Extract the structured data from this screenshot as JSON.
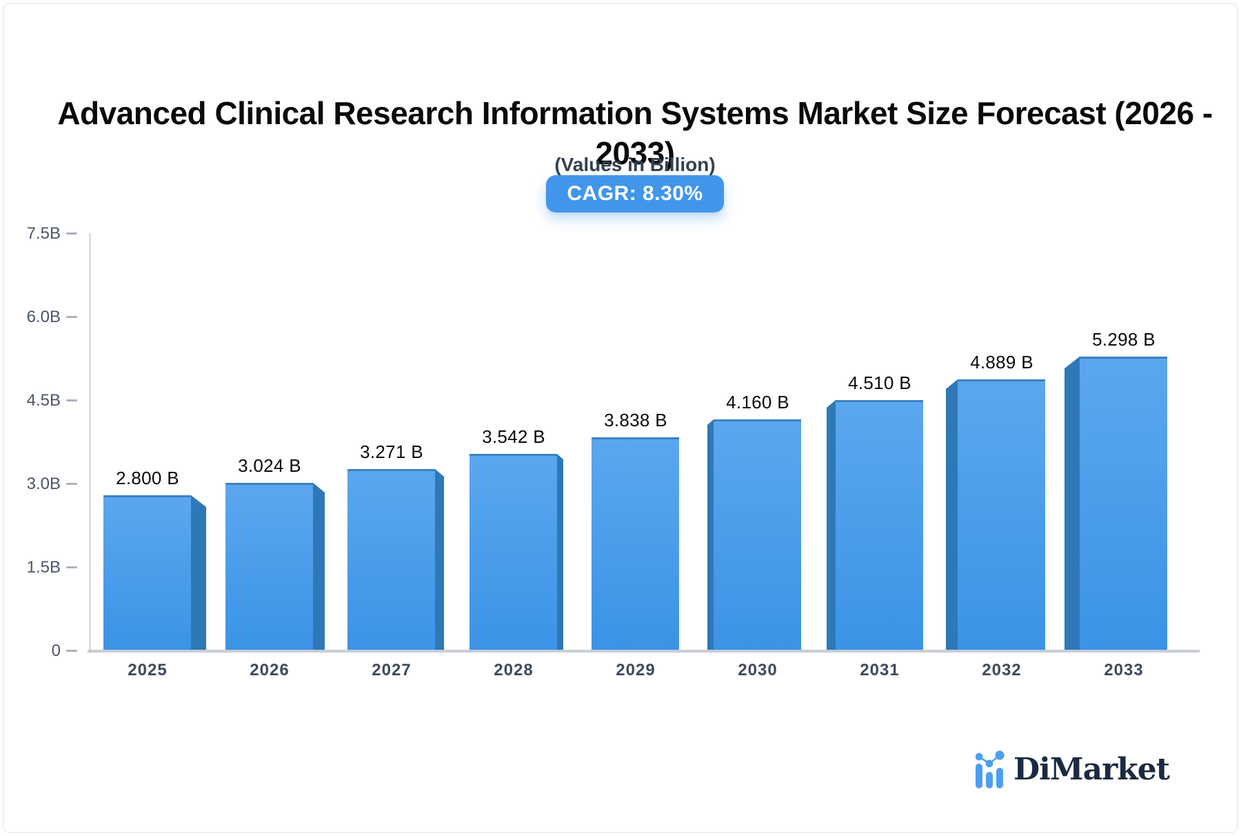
{
  "header": {
    "title_line1": "Advanced Clinical Research Information Systems Market Size Forecast (2026 -",
    "title_line2": "2033)",
    "subtitle": "(Values in Billion)",
    "cagr_badge": "CAGR: 8.30%"
  },
  "chart_data": {
    "type": "bar",
    "title": "Advanced Clinical Research Information Systems Market Size Forecast (2026 - 2033)",
    "subtitle": "(Values in Billion)",
    "annotation": "CAGR: 8.30%",
    "categories": [
      "2025",
      "2026",
      "2027",
      "2028",
      "2029",
      "2030",
      "2031",
      "2032",
      "2033"
    ],
    "values": [
      2.8,
      3.024,
      3.271,
      3.542,
      3.838,
      4.16,
      4.51,
      4.889,
      5.298
    ],
    "value_labels": [
      "2.800 B",
      "3.024 B",
      "3.271 B",
      "3.542 B",
      "3.838 B",
      "4.160 B",
      "4.510 B",
      "4.889 B",
      "5.298 B"
    ],
    "ylim": [
      0,
      7.5
    ],
    "yticks": [
      {
        "label": "7.5B",
        "value": 7.5
      },
      {
        "label": "6.0B",
        "value": 6.0
      },
      {
        "label": "4.5B",
        "value": 4.5
      },
      {
        "label": "3.0B",
        "value": 3.0
      },
      {
        "label": "1.5B",
        "value": 1.5
      },
      {
        "label": "0",
        "value": 0
      }
    ],
    "grid": false,
    "legend": false,
    "bar_style": "3d-perspective"
  },
  "colors": {
    "bar_front_top": "#5BA7EE",
    "bar_front_bottom": "#3B93E6",
    "bar_side": "#2F78B7",
    "bar_top_edge": "#3D81C1",
    "badge_bg": "#4196EB",
    "badge_text": "#FFFFFF",
    "axis_text": "#4A5568",
    "category_text": "#3E4A5B",
    "value_text": "#0A0A0A",
    "logo_blue": "#4C9FF0",
    "logo_text_color": "#1B2A41"
  },
  "footer": {
    "logo_text": "DiMarket"
  }
}
